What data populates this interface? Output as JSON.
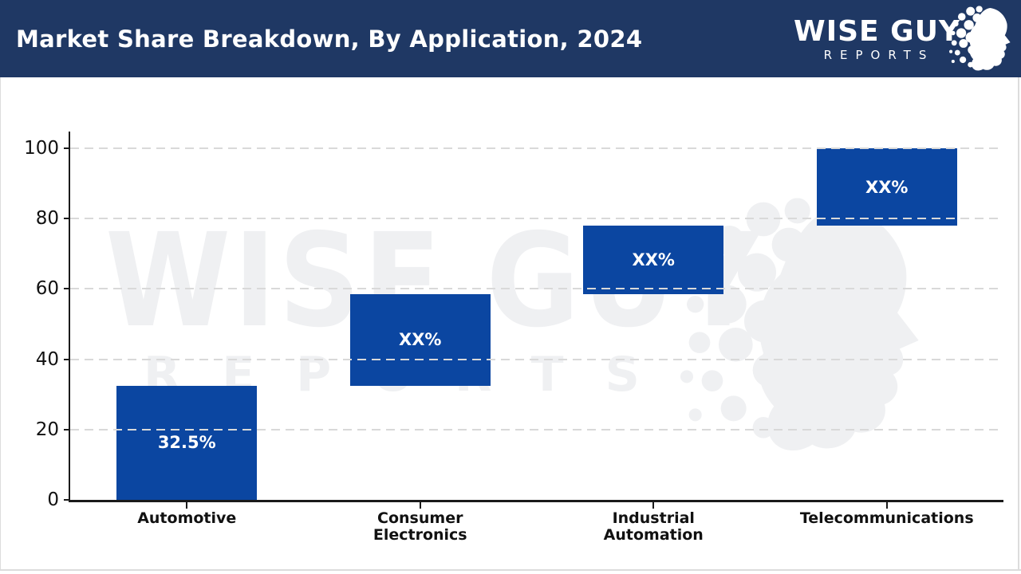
{
  "header": {
    "title": "Market Share Breakdown, By Application, 2024",
    "logo": {
      "brand_top": "WISE GUY",
      "brand_bottom": "REPORTS"
    }
  },
  "watermark": {
    "brand_top": "WISE GUY",
    "brand_bottom": "REPORTS"
  },
  "chart_data": {
    "type": "bar",
    "subtype": "floating-waterfall",
    "title": "Market Share Breakdown, By Application, 2024",
    "categories": [
      "Automotive",
      "Consumer Electronics",
      "Industrial Automation",
      "Telecommunications"
    ],
    "categories_multiline": [
      [
        "Automotive"
      ],
      [
        "Consumer",
        "Electronics"
      ],
      [
        "Industrial",
        "Automation"
      ],
      [
        "Telecommunications"
      ]
    ],
    "segments": [
      {
        "category": "Automotive",
        "start": 0,
        "end": 32.5,
        "label": "32.5%"
      },
      {
        "category": "Consumer Electronics",
        "start": 32.5,
        "end": 58.5,
        "label": "XX%"
      },
      {
        "category": "Industrial Automation",
        "start": 58.5,
        "end": 78,
        "label": "XX%"
      },
      {
        "category": "Telecommunications",
        "start": 78,
        "end": 100,
        "label": "XX%"
      }
    ],
    "values": [
      32.5,
      26,
      19.5,
      22
    ],
    "xlabel": "",
    "ylabel": "",
    "ylim": [
      0,
      100
    ],
    "yticks": [
      0,
      20,
      40,
      60,
      80,
      100
    ],
    "grid": "horizontal-dashed",
    "legend": "none",
    "bar_color": "#0b46a1",
    "bar_label_color": "#ffffff"
  },
  "colors": {
    "header_bg": "#1f3864",
    "bar": "#0b46a1",
    "watermark": "#eff0f2",
    "gridline": "#d9d9d9",
    "axis": "#1a1a1a",
    "tick_label": "#111111"
  }
}
